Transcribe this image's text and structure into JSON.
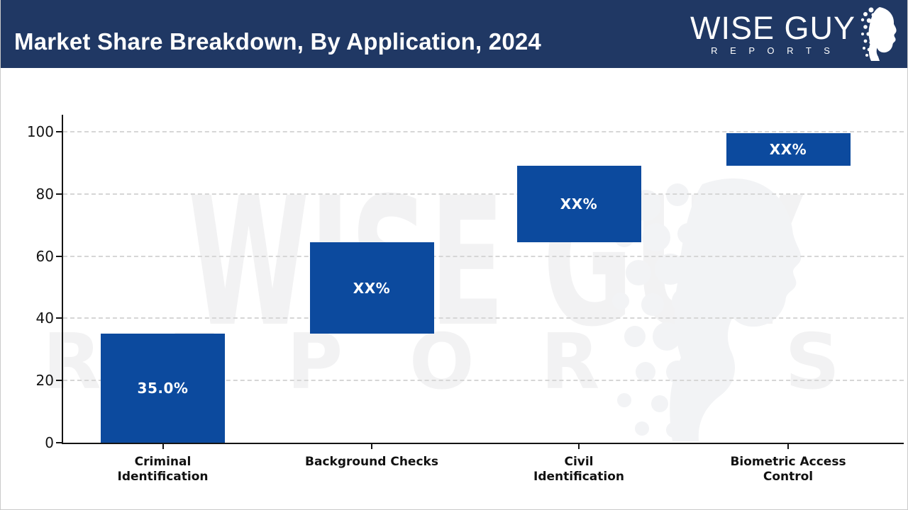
{
  "header": {
    "title": "Market Share Breakdown, By Application, 2024",
    "logo_line1": "WISE GUY",
    "logo_line2": "R E P O R T S"
  },
  "watermark": {
    "line1": "WISE GUY",
    "line2": "R E P O R T S"
  },
  "chart_data": {
    "type": "bar",
    "subtype": "waterfall",
    "title": "Market Share Breakdown, By Application, 2024",
    "categories": [
      "Criminal\nIdentification",
      "Background Checks",
      "Civil\nIdentification",
      "Biometric Access\nControl"
    ],
    "bars": [
      {
        "category": "Criminal Identification",
        "start": 0,
        "end": 35,
        "label": "35.0%"
      },
      {
        "category": "Background Checks",
        "start": 35,
        "end": 64.5,
        "label": "XX%"
      },
      {
        "category": "Civil Identification",
        "start": 64.5,
        "end": 89,
        "label": "XX%"
      },
      {
        "category": "Biometric Access Control",
        "start": 89,
        "end": 99.5,
        "label": "XX%"
      }
    ],
    "ylim": [
      0,
      100
    ],
    "yticks": [
      0,
      20,
      40,
      60,
      80,
      100
    ],
    "xlabel": "",
    "ylabel": "",
    "grid": "horizontal-dashed",
    "legend": "none"
  },
  "colors": {
    "header_bg": "#203864",
    "bar": "#0c4a9e",
    "bar_label": "#ffffff",
    "grid": "#d6d6d6",
    "axis": "#141414",
    "watermark": "#f2f2f3",
    "page_border": "#cacaca"
  }
}
